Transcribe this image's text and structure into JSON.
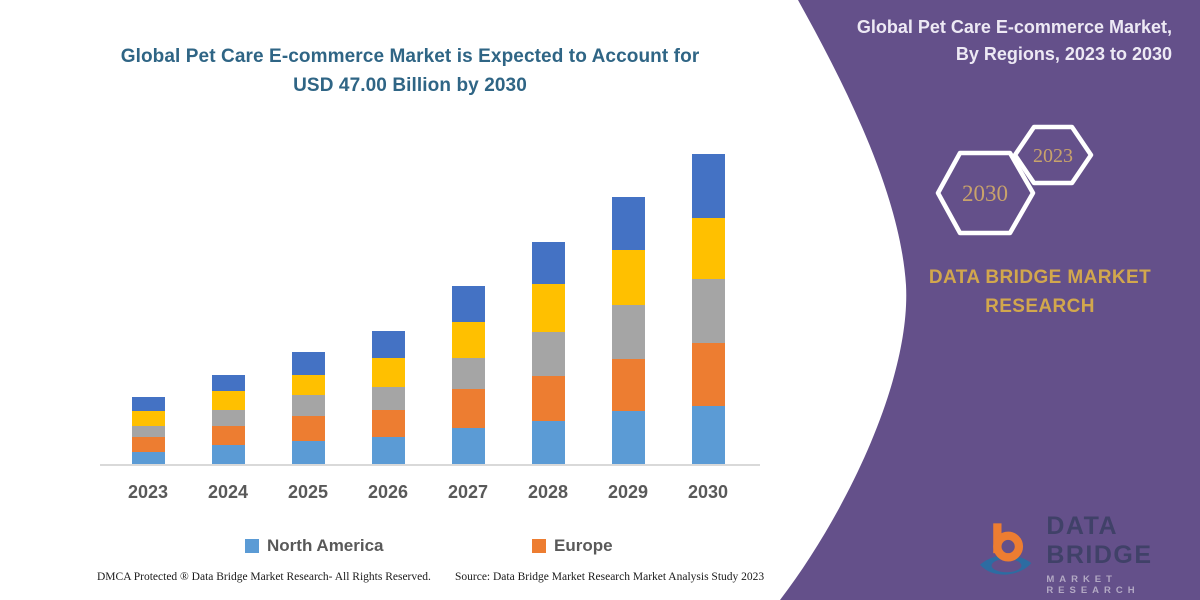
{
  "left_panel": {
    "title": "Global Pet Care E-commerce Market is Expected to Account for USD 47.00 Billion by 2030",
    "legend": [
      {
        "label": "North America",
        "color": "#5B9BD5"
      },
      {
        "label": "Europe",
        "color": "#ED7D31"
      }
    ],
    "footer": {
      "dmca": "DMCA Protected ® Data Bridge Market Research-  All Rights Reserved.",
      "source": "Source: Data Bridge Market Research  Market Analysis Study 2023"
    }
  },
  "chart_data": {
    "type": "bar",
    "stacked": true,
    "title": "Global Pet Care E-commerce Market is Expected to Account for USD 47.00 Billion by 2030",
    "categories": [
      "2023",
      "2024",
      "2025",
      "2026",
      "2027",
      "2028",
      "2029",
      "2030"
    ],
    "units": "USD billion (estimated from bar heights; anchored to 2030 total = 47.00)",
    "ylim": [
      0,
      47
    ],
    "gridlines": false,
    "legend_position": "bottom",
    "legend_visible_entries": [
      "North America",
      "Europe"
    ],
    "series": [
      {
        "name": "North America",
        "color": "#5B9BD5",
        "in_legend": true,
        "values": [
          1.8,
          2.9,
          3.5,
          4.1,
          5.5,
          6.5,
          8.0,
          8.8
        ]
      },
      {
        "name": "Europe",
        "color": "#ED7D31",
        "in_legend": true,
        "values": [
          2.3,
          2.9,
          3.8,
          4.1,
          5.9,
          6.8,
          7.9,
          9.6
        ]
      },
      {
        "name": "unlabeled-gray",
        "color": "#A5A5A5",
        "in_legend": false,
        "values": [
          1.7,
          2.4,
          3.2,
          3.5,
          4.7,
          6.7,
          8.2,
          9.7
        ]
      },
      {
        "name": "unlabeled-yellow",
        "color": "#FFC000",
        "in_legend": false,
        "values": [
          2.3,
          2.9,
          3.0,
          4.4,
          5.5,
          7.3,
          8.3,
          9.2
        ]
      },
      {
        "name": "unlabeled-darkblue",
        "color": "#4472C4",
        "in_legend": false,
        "values": [
          2.1,
          2.4,
          3.5,
          4.1,
          5.5,
          6.4,
          8.0,
          9.7
        ]
      }
    ],
    "totals_estimated": [
      10.2,
      13.5,
      17.0,
      20.2,
      27.1,
      33.7,
      40.4,
      47.0
    ]
  },
  "right_panel": {
    "background": "#64508A",
    "title_line1": "Global Pet Care E-commerce Market,",
    "title_line2": "By Regions, 2023 to 2030",
    "hexagon_large_year": "2030",
    "hexagon_small_year": "2023",
    "brand_line1": "DATA BRIDGE MARKET",
    "brand_line2": "RESEARCH",
    "logo": {
      "name": "DATA BRIDGE",
      "tagline": "MARKET RESEARCH"
    }
  },
  "colors": {
    "left_title": "#2F6585",
    "axis_label": "#595959",
    "axis_line": "#D9D9D9",
    "panel_purple": "#64508A",
    "gold_text": "#D2A74D",
    "hexagon_year": "#C9A36B",
    "hexagon_stroke": "#FFFFFF"
  }
}
